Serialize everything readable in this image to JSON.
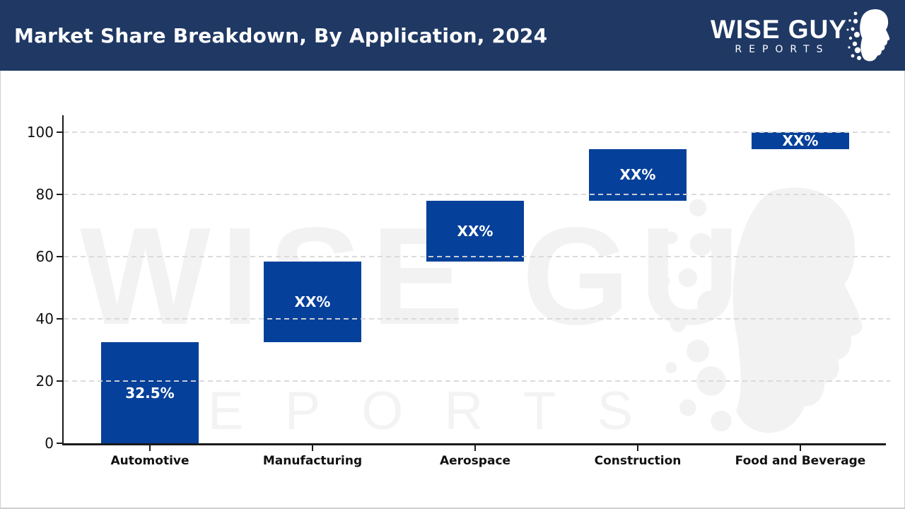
{
  "header": {
    "title": "Market Share Breakdown, By Application, 2024",
    "logo": {
      "line1": "WISE GUY",
      "line2": "REPORTS"
    }
  },
  "watermark": {
    "line1": "WISE GUY",
    "line2": "REPORTS"
  },
  "colors": {
    "header_bg": "#1f3864",
    "bar": "#05409a",
    "bar_label": "#ffffff",
    "grid": "#d9d9d9",
    "axis": "#1a1a1a",
    "watermark": "#f2f2f2"
  },
  "chart_data": {
    "type": "bar",
    "subtype": "waterfall",
    "title": "Market Share Breakdown, By Application, 2024",
    "categories": [
      "Automotive",
      "Manufacturing",
      "Aerospace",
      "Construction",
      "Food and Beverage"
    ],
    "segments": [
      {
        "category": "Automotive",
        "start": 0,
        "end": 32.5,
        "label": "32.5%"
      },
      {
        "category": "Manufacturing",
        "start": 32.5,
        "end": 58.5,
        "label": "XX%"
      },
      {
        "category": "Aerospace",
        "start": 58.5,
        "end": 78,
        "label": "XX%"
      },
      {
        "category": "Construction",
        "start": 78,
        "end": 94.5,
        "label": "XX%"
      },
      {
        "category": "Food and Beverage",
        "start": 94.5,
        "end": 100,
        "label": "XX%"
      }
    ],
    "yticks": [
      0,
      20,
      40,
      60,
      80,
      100
    ],
    "ylim": [
      0,
      105.5
    ],
    "xlabel": "",
    "ylabel": "",
    "grid": "horizontal-dashed",
    "legend": "none",
    "bar_color": "#05409a"
  }
}
